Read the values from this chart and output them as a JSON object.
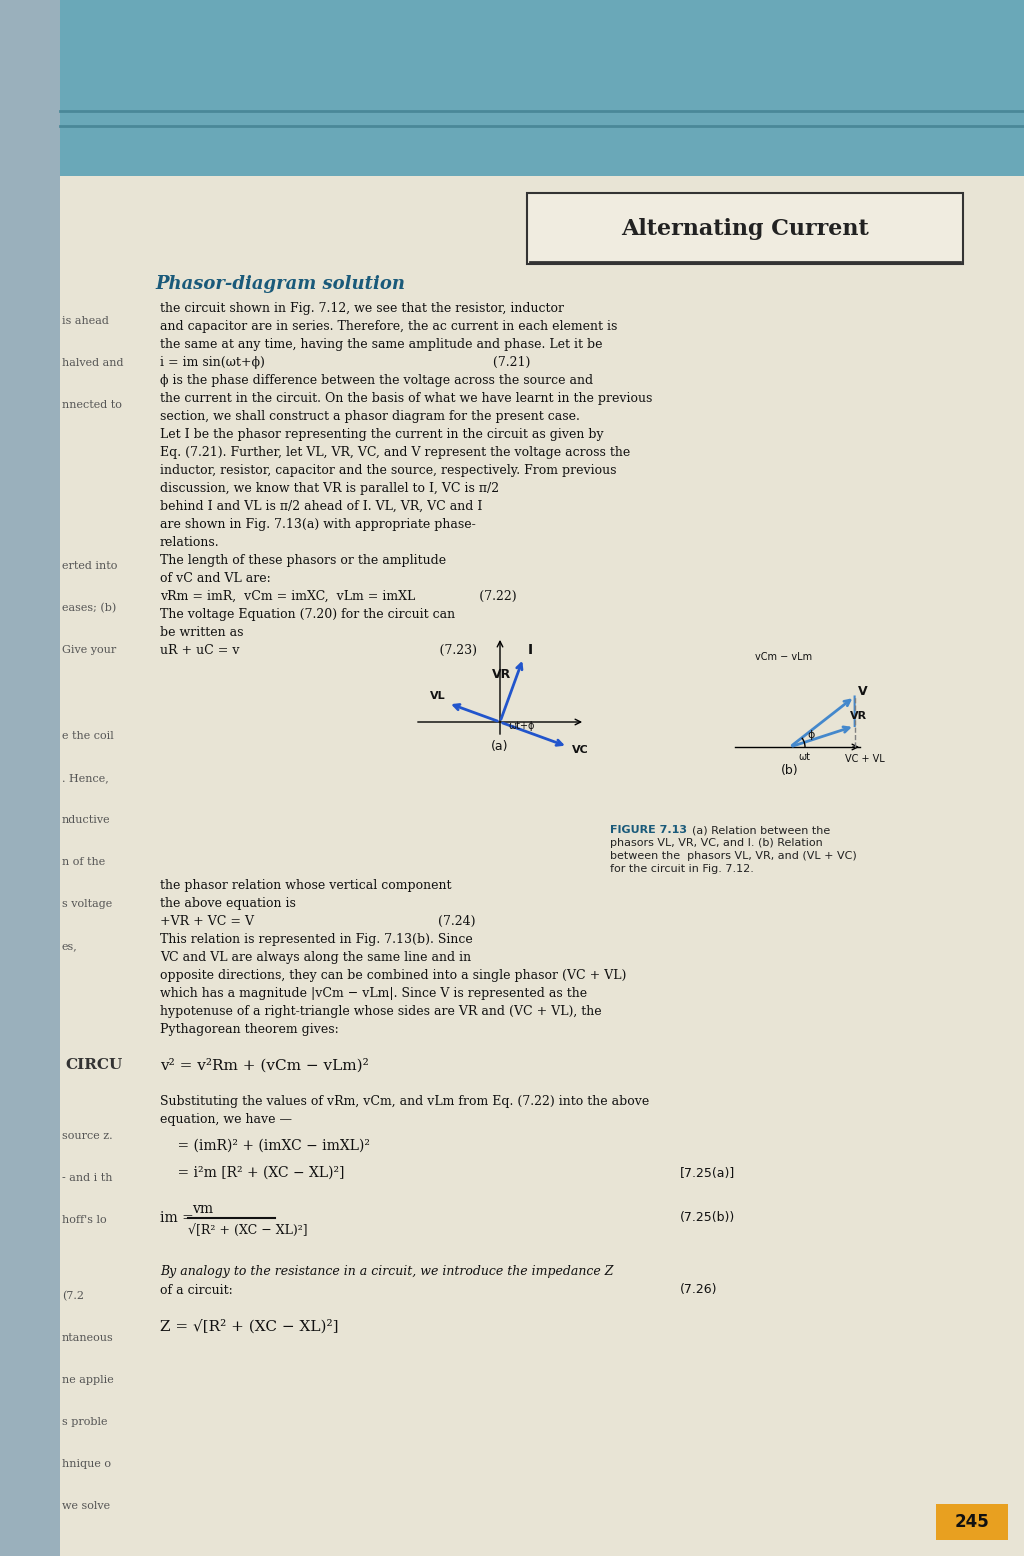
{
  "bg_color": "#b8c8d0",
  "page_bg": "#e8e4d5",
  "spine_color": "#9ab0bc",
  "binding_color": "#6aa8b8",
  "binding_line_color": "#4a8898",
  "title": "Alternating Current",
  "title_box_color": "#f0ece0",
  "section_title": "Phasor-diagram solution",
  "section_title_color": "#1a5a7a",
  "page_num": "245",
  "page_num_bg": "#e8a020",
  "text_color": "#111111",
  "margin_color": "#555555",
  "figure_caption_color": "#1a5a7a",
  "phasor_color": "#2255cc",
  "phasor_b_color": "#4488cc"
}
